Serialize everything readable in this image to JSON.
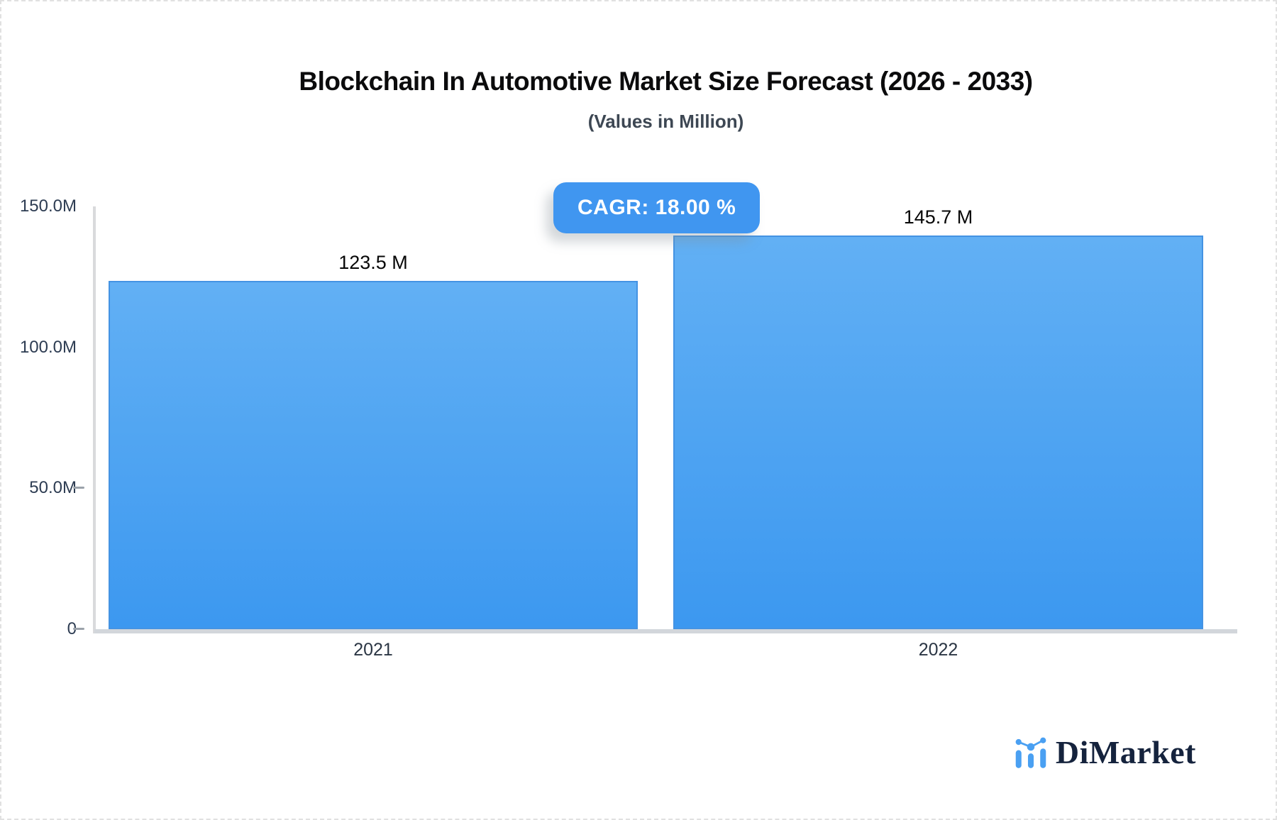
{
  "page": {
    "title": "Blockchain In Automotive Market Size Forecast (2026 - 2033)",
    "subtitle": "(Values in Million)",
    "cagr_badge": {
      "label": "CAGR: 18.00 %",
      "background": "#4096f0",
      "text_color": "#ffffff"
    },
    "brand": {
      "name": "DiMarket",
      "icon": "bar-chart-logo-icon",
      "color": "#15233d",
      "icon_color": "#4aa0f2"
    }
  },
  "chart_data": {
    "type": "bar",
    "title": "Blockchain In Automotive Market Size Forecast (2026 - 2033)",
    "subtitle": "(Values in Million)",
    "categories": [
      "2021",
      "2022"
    ],
    "values": [
      123.5,
      145.7
    ],
    "value_labels": [
      "123.5 M",
      "145.7 M"
    ],
    "cagr": "18.00 %",
    "ylim": [
      0,
      150
    ],
    "yticks": [
      {
        "label": "150.0M",
        "value": 150,
        "tick_mark": false
      },
      {
        "label": "100.0M",
        "value": 100,
        "tick_mark": false
      },
      {
        "label": "50.0M",
        "value": 50,
        "tick_mark": true
      },
      {
        "label": "0",
        "value": 0,
        "tick_mark": true
      }
    ],
    "grid": false,
    "legend": false,
    "bar_gradient_top": "#62b0f4",
    "bar_gradient_bottom": "#3c98f0",
    "bar_border_color": "#4493e3",
    "axis_color": "#d2d6db"
  }
}
